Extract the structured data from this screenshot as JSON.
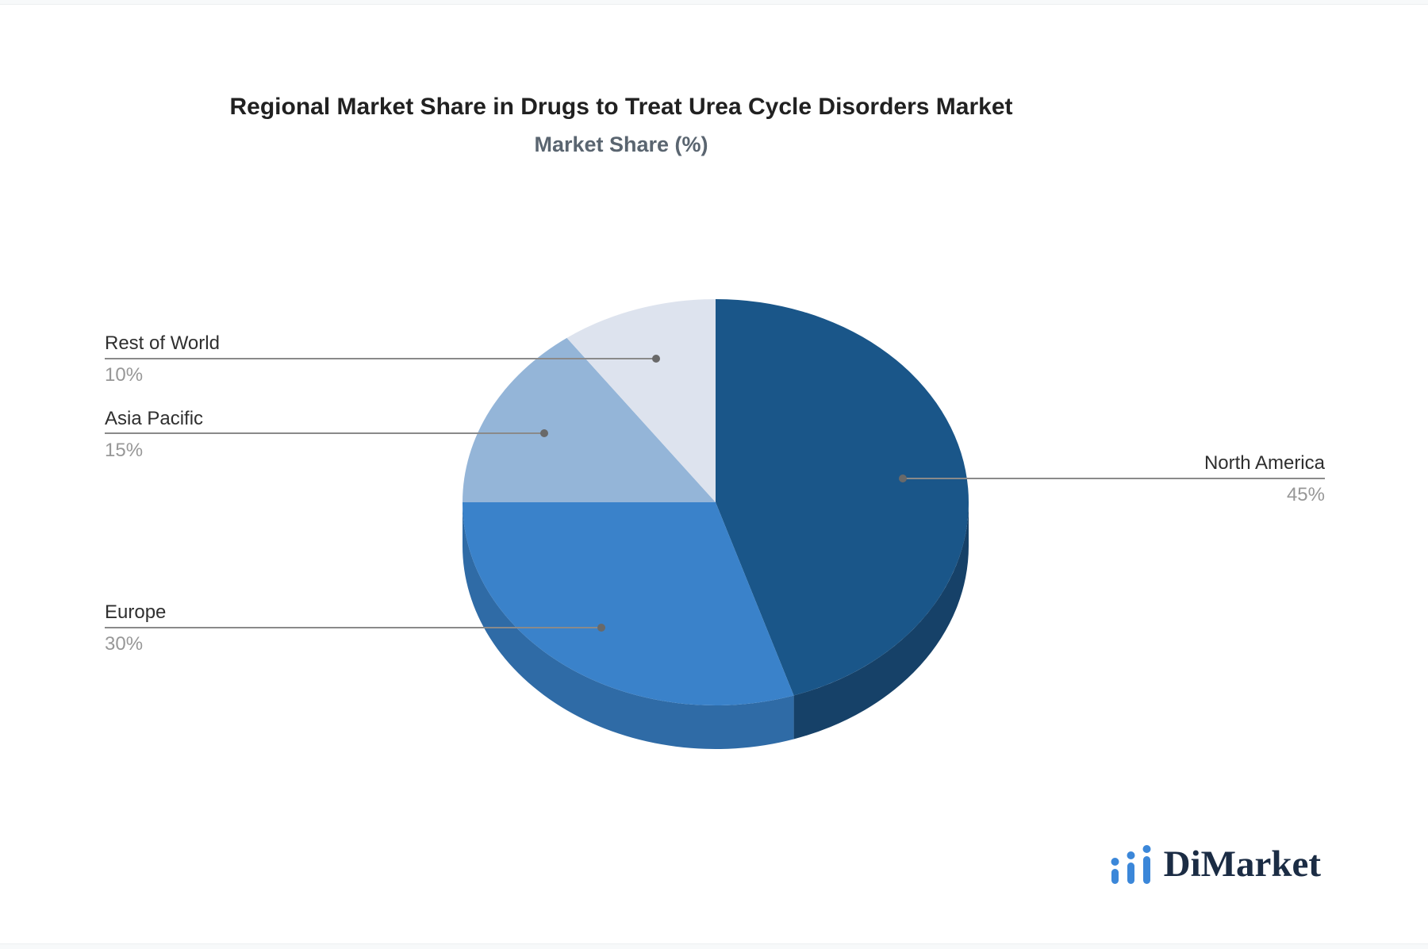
{
  "header": {
    "title": "Regional Market Share in Drugs to Treat Urea Cycle Disorders Market",
    "subtitle": "Market Share (%)"
  },
  "chart_data": {
    "type": "pie",
    "style": "3d",
    "title": "Regional Market Share in Drugs to Treat Urea Cycle Disorders Market",
    "subtitle": "Market Share (%)",
    "unit": "%",
    "labels": [
      "North America",
      "Europe",
      "Asia Pacific",
      "Rest of World"
    ],
    "values": [
      45,
      30,
      15,
      10
    ],
    "percent_labels": [
      "45%",
      "30%",
      "15%",
      "10%"
    ],
    "colors": [
      "#1A5689",
      "#3A82CA",
      "#94B5D8",
      "#DDE3EE"
    ],
    "side_colors": [
      "#164168",
      "#2F6BA6",
      "#7E9FC4",
      "#C2CCDC"
    ],
    "start_angle": "12-o-clock",
    "direction": "clockwise",
    "legend_position": "callout-labels",
    "grid": false
  },
  "branding": {
    "logo_text": "DiMarket",
    "logo_icon": "ascending-bar-chart-icon",
    "logo_icon_color": "#3B87D9",
    "logo_text_color": "#1B2C44"
  },
  "palette": {
    "background": "#FFFFFF",
    "title_text": "#212121",
    "subtitle_text": "#5A6570",
    "label_text": "#2F2F2F",
    "percent_text": "#979797",
    "leader_line": "#8A8A8A",
    "leader_dot": "#696969"
  }
}
